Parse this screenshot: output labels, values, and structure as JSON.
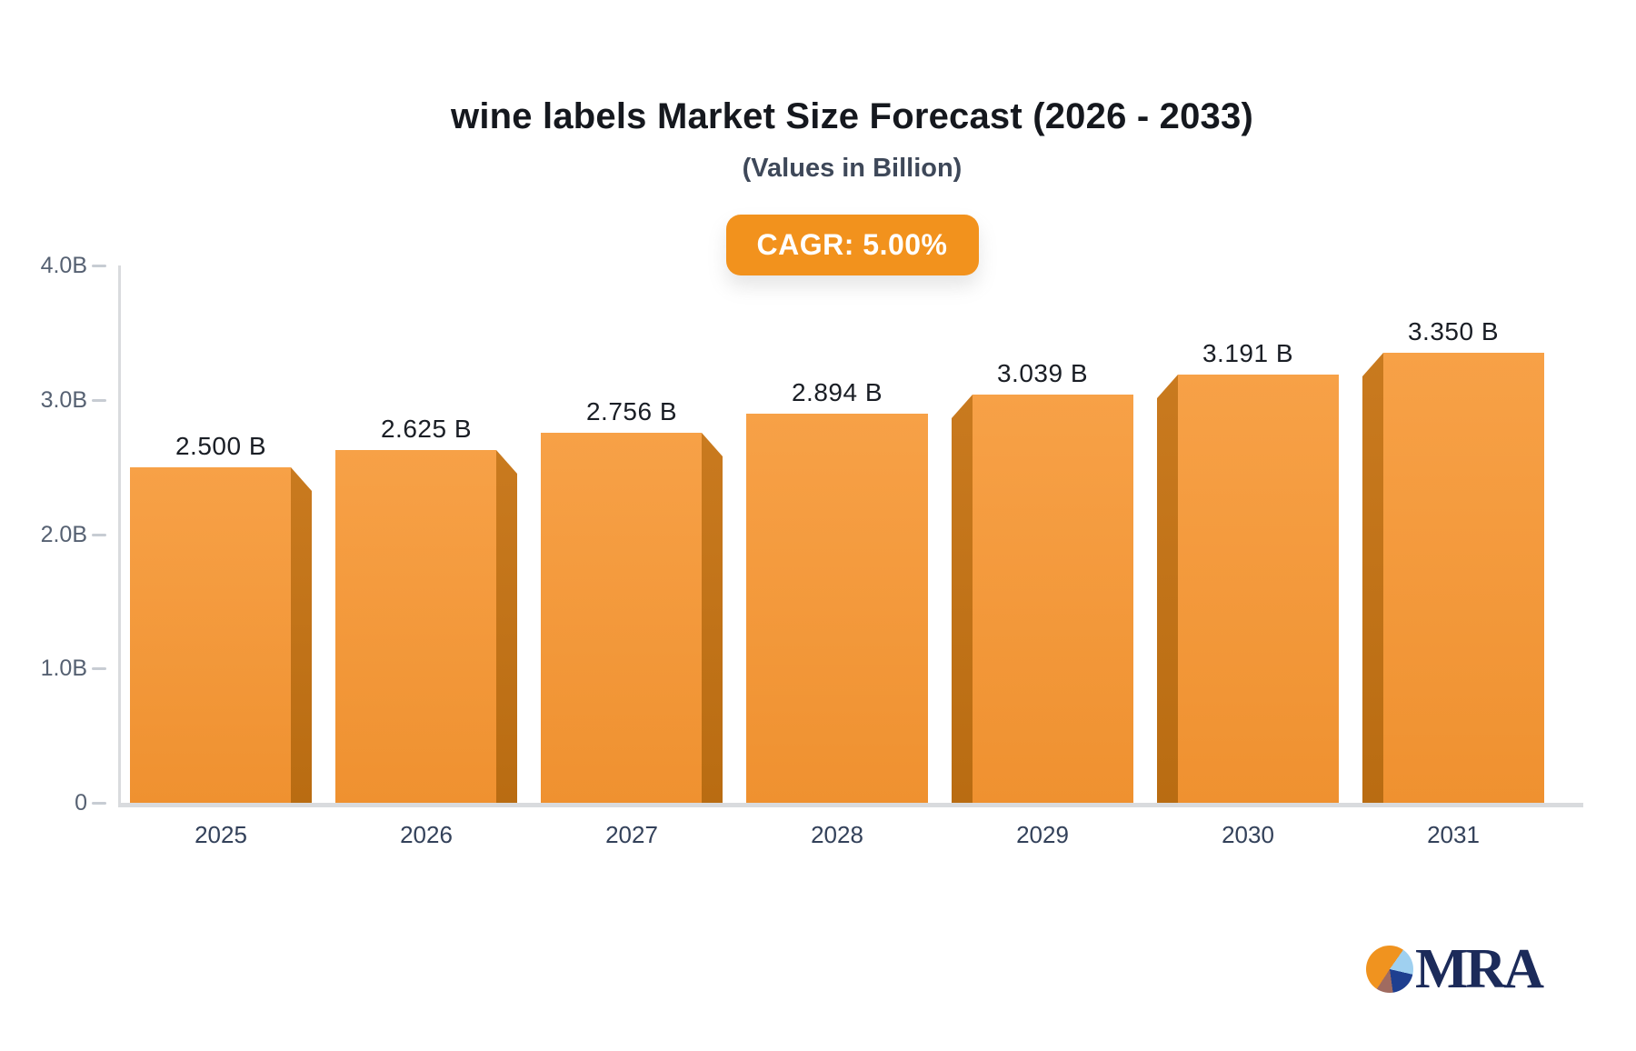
{
  "title": "wine labels Market Size Forecast (2026 - 2033)",
  "subtitle": "(Values in Billion)",
  "cagr_badge": {
    "label": "CAGR: 5.00%",
    "bg_color": "#F2921D",
    "text_color": "#FFFFFF"
  },
  "chart_data": {
    "type": "bar",
    "title": "wine labels Market Size Forecast (2026 - 2033)",
    "subtitle": "(Values in Billion)",
    "cagr": "5.00%",
    "categories": [
      "2025",
      "2026",
      "2027",
      "2028",
      "2029",
      "2030",
      "2031"
    ],
    "values": [
      2.5,
      2.625,
      2.756,
      2.894,
      3.039,
      3.191,
      3.35
    ],
    "value_labels": [
      "2.500 B",
      "2.625 B",
      "2.756 B",
      "2.894 B",
      "3.039 B",
      "3.191 B",
      "3.350 B"
    ],
    "ylim": [
      0,
      4.0
    ],
    "yticks": [
      {
        "label": "4.0B",
        "value": 4.0
      },
      {
        "label": "3.0B",
        "value": 3.0
      },
      {
        "label": "2.0B",
        "value": 2.0
      },
      {
        "label": "1.0B",
        "value": 1.0
      },
      {
        "label": "0",
        "value": 0
      }
    ],
    "xlabel": "",
    "ylabel": "",
    "grid": false,
    "legend_position": "none",
    "bar_style": "3d-extruded",
    "bar_face_color_top": "#F7A147",
    "bar_face_color_bottom": "#EF9130",
    "bar_side_color_top": "#C97A1F",
    "bar_side_color_bottom": "#B96C12",
    "axis_line_color": "#D9DBDE",
    "tick_label_color": "#566172",
    "value_label_color": "#1A1E25",
    "category_label_color": "#33415A"
  },
  "logo": {
    "text": "MRA",
    "text_color": "#1C2B5A",
    "pie_slices": [
      {
        "name": "orange",
        "color": "#F0931F"
      },
      {
        "name": "light-blue",
        "color": "#9FD0F0"
      },
      {
        "name": "navy",
        "color": "#1E3F90"
      },
      {
        "name": "brown",
        "color": "#A06B60"
      }
    ]
  }
}
